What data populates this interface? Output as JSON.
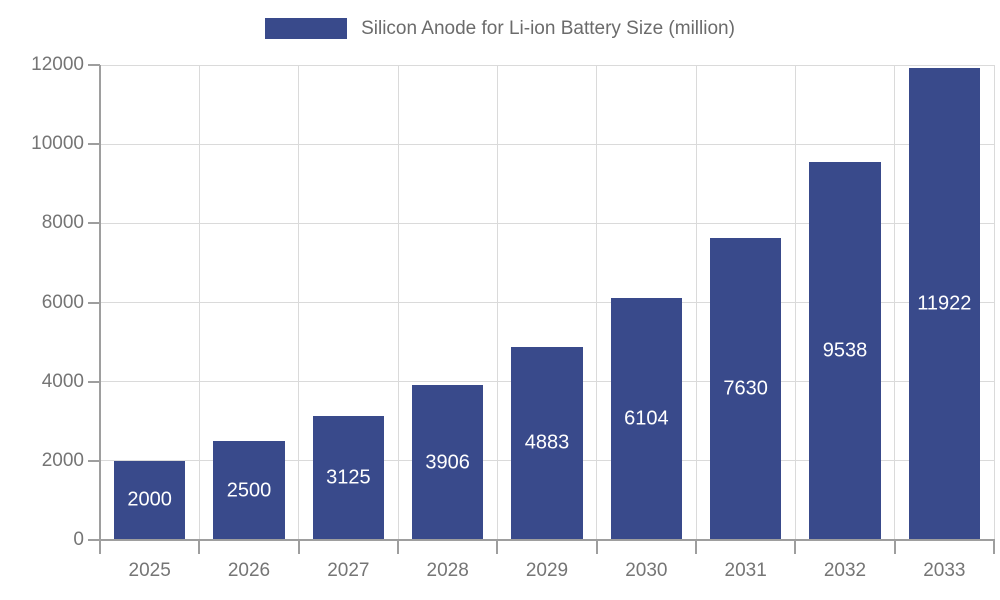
{
  "chart_data": {
    "type": "bar",
    "title": "Silicon Anode for Li-ion Battery Size (million)",
    "legend_label": "Silicon Anode for Li-ion Battery Size (million)",
    "legend_position": "top",
    "categories": [
      "2025",
      "2026",
      "2027",
      "2028",
      "2029",
      "2030",
      "2031",
      "2032",
      "2033"
    ],
    "values": [
      2000,
      2500,
      3125,
      3906,
      4883,
      6104,
      7630,
      9538,
      11922
    ],
    "value_labels": [
      "2000",
      "2500",
      "3125",
      "3906",
      "4883",
      "6104",
      "7630",
      "9538",
      "11922"
    ],
    "xlabel": "",
    "ylabel": "",
    "ylim": [
      0,
      12000
    ],
    "yticks": [
      0,
      2000,
      4000,
      6000,
      8000,
      10000,
      12000
    ],
    "ytick_labels": [
      "0",
      "2000",
      "4000",
      "6000",
      "8000",
      "10000",
      "12000"
    ],
    "grid": true,
    "colors": {
      "bar": "#394A8B",
      "bar_value_text": "#FFFFFF",
      "axis_line": "#9E9E9E",
      "gridline": "#DADADA",
      "tick_label": "#757575",
      "legend_text": "#6B6B6B"
    }
  }
}
